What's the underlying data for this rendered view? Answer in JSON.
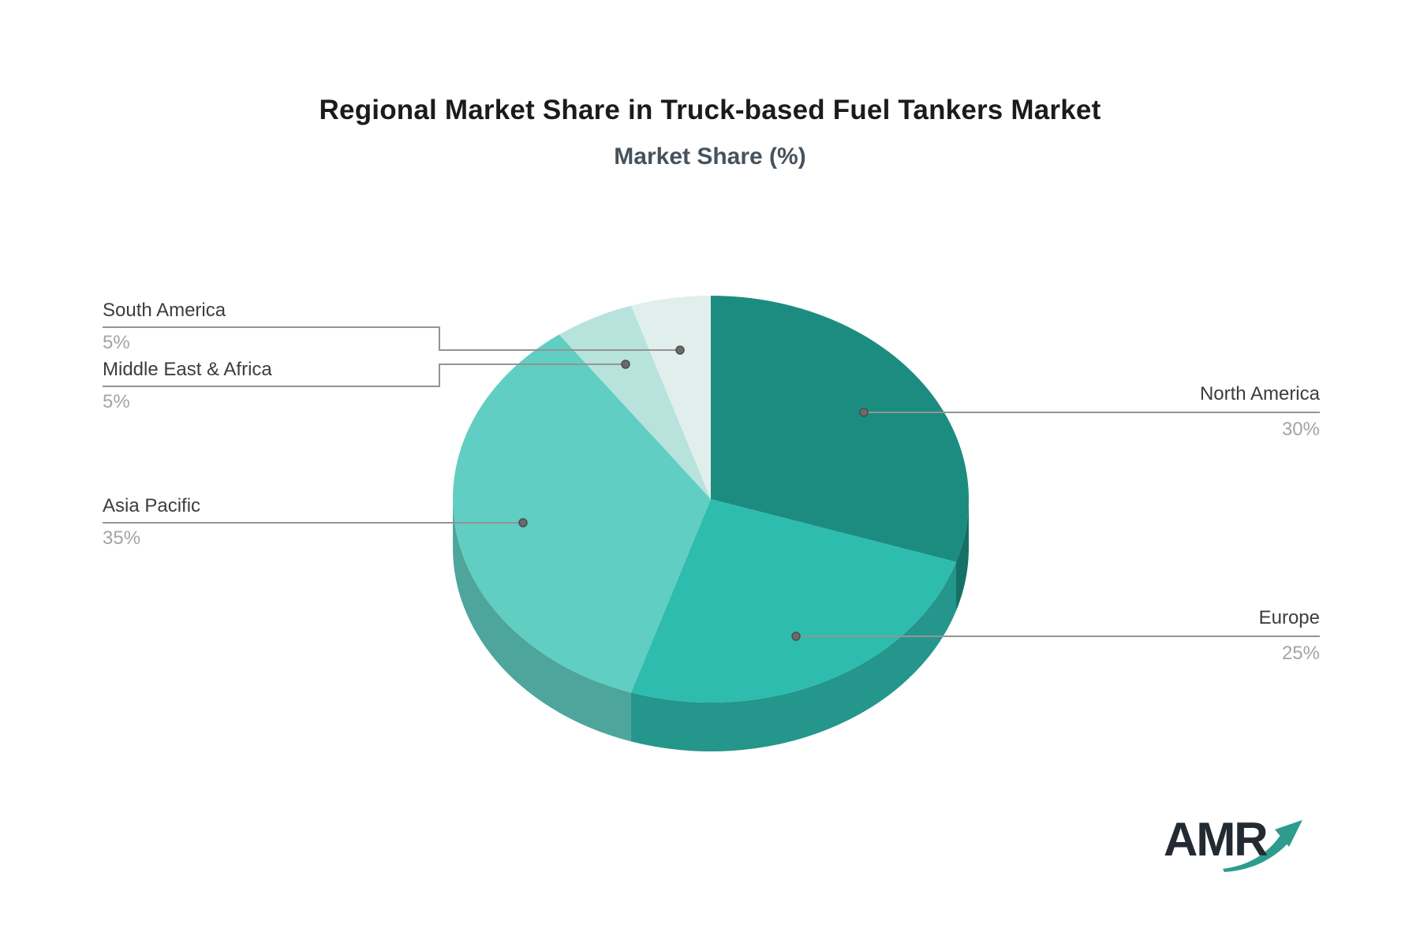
{
  "header": {
    "title": "Regional Market Share in Truck-based Fuel Tankers Market",
    "subtitle": "Market Share (%)"
  },
  "chart_data": {
    "type": "pie",
    "title": "Regional Market Share in Truck-based Fuel Tankers Market",
    "subtitle": "Market Share (%)",
    "unit": "%",
    "style": "3d",
    "start_angle": "12-o-clock",
    "direction": "clockwise",
    "slices": [
      {
        "label": "North America",
        "value": 30,
        "pct_label": "30%",
        "color": "#1c8c80"
      },
      {
        "label": "Europe",
        "value": 25,
        "pct_label": "25%",
        "color": "#2ebcae"
      },
      {
        "label": "Asia Pacific",
        "value": 35,
        "pct_label": "35%",
        "color": "#60cec2"
      },
      {
        "label": "Middle East & Africa",
        "value": 5,
        "pct_label": "5%",
        "color": "#b7e3dc"
      },
      {
        "label": "South America",
        "value": 5,
        "pct_label": "5%",
        "color": "#e1efec"
      }
    ],
    "leader_line_color": "#949494",
    "label_color": "#3d3d3d",
    "pct_color": "#a4a4a4"
  },
  "logo": {
    "text": "AMR",
    "text_color": "#232a33",
    "arrow_color": "#2d9c8e"
  }
}
